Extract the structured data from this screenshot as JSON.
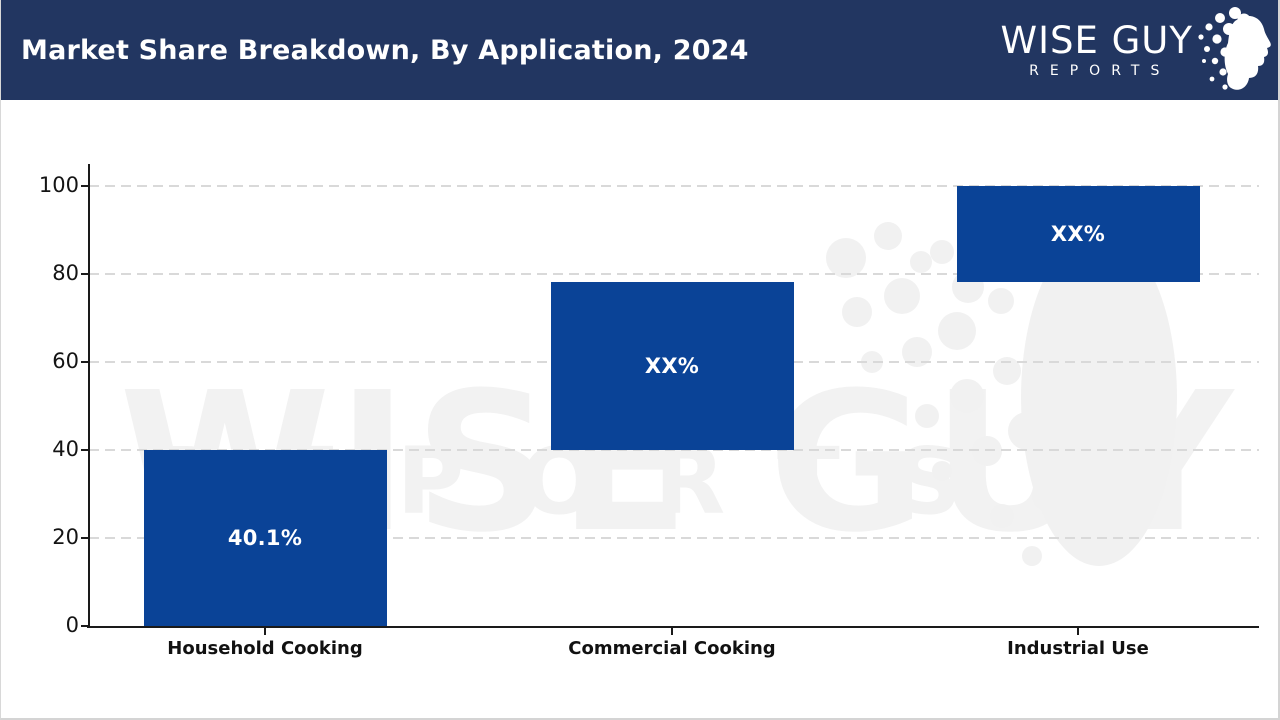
{
  "header": {
    "title": "Market Share Breakdown, By Application, 2024",
    "logo": {
      "wordmark": "WISE GUY",
      "subtext": "REPORTS",
      "head_icon": "dotted-head-profile"
    }
  },
  "colors": {
    "header_bg": "#223661",
    "bar": "#0a4397",
    "grid": "#d9d9d9",
    "axis": "#1a1a1a",
    "bar_label": "#ffffff",
    "watermark": "#f2f2f2"
  },
  "watermark": {
    "line1": "WISE GUY",
    "line2": "REPORTS"
  },
  "chart_data": {
    "type": "bar",
    "variant": "floating-waterfall",
    "title": "Market Share Breakdown, By Application, 2024",
    "categories": [
      "Household Cooking",
      "Commercial Cooking",
      "Industrial Use"
    ],
    "segments": [
      {
        "category": "Household Cooking",
        "start": 0,
        "end": 40.1,
        "label": "40.1%"
      },
      {
        "category": "Commercial Cooking",
        "start": 40.1,
        "end": 78.2,
        "label": "XX%"
      },
      {
        "category": "Industrial Use",
        "start": 78.2,
        "end": 100,
        "label": "XX%"
      }
    ],
    "xlabel": "",
    "ylabel": "",
    "ylim": [
      0,
      100
    ],
    "yticks": [
      0,
      20,
      40,
      60,
      80,
      100
    ],
    "grid": "horizontal-dashed",
    "legend": null
  }
}
